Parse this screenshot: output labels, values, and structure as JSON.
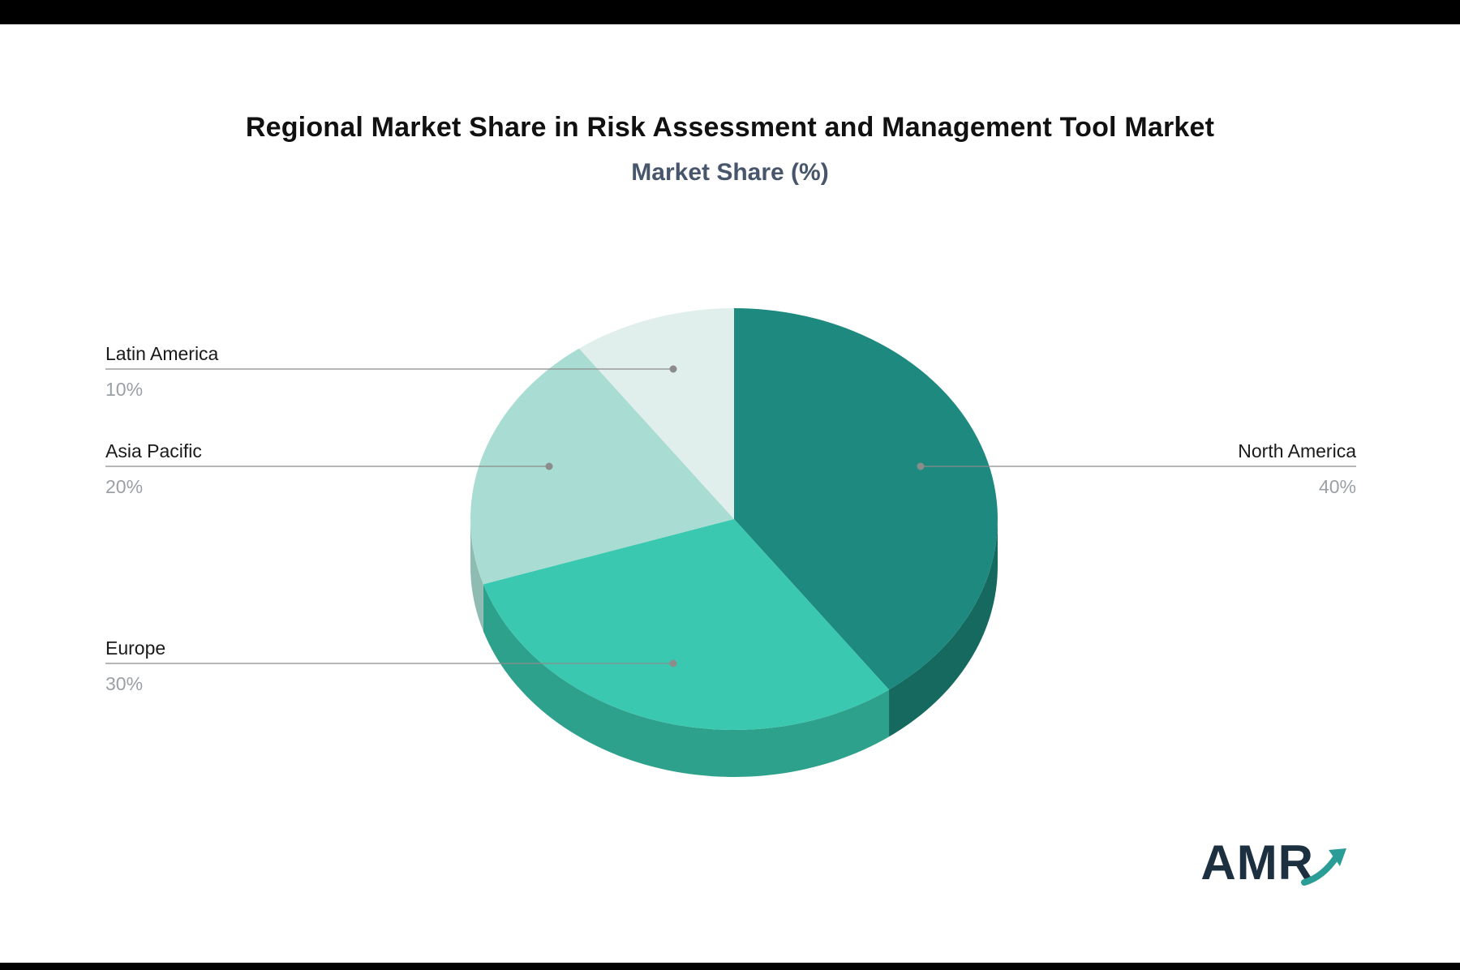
{
  "chart_data": {
    "type": "pie",
    "title": "Regional Market Share in Risk Assessment and Management Tool Market",
    "subtitle": "Market Share (%)",
    "unit": "%",
    "start_angle_deg": -90,
    "direction": "clockwise",
    "style": "3d-pie",
    "slices": [
      {
        "label": "North America",
        "value": 40,
        "display": "40%",
        "color": "#1e8a7f",
        "side_color": "#15695f",
        "label_side": "right"
      },
      {
        "label": "Europe",
        "value": 30,
        "display": "30%",
        "color": "#3ac9b0",
        "side_color": "#2da18c",
        "label_side": "left"
      },
      {
        "label": "Asia Pacific",
        "value": 20,
        "display": "20%",
        "color": "#a9dcd2",
        "side_color": "#8fbcb2",
        "label_side": "left"
      },
      {
        "label": "Latin America",
        "value": 10,
        "display": "10%",
        "color": "#e1efec",
        "side_color": "#bfd6d1",
        "label_side": "left"
      }
    ],
    "leader_line_color": "#8c8c8c",
    "label_color": "#1a1a1a",
    "value_color": "#9aa0a6"
  },
  "branding": {
    "logo_text": "AMR"
  }
}
